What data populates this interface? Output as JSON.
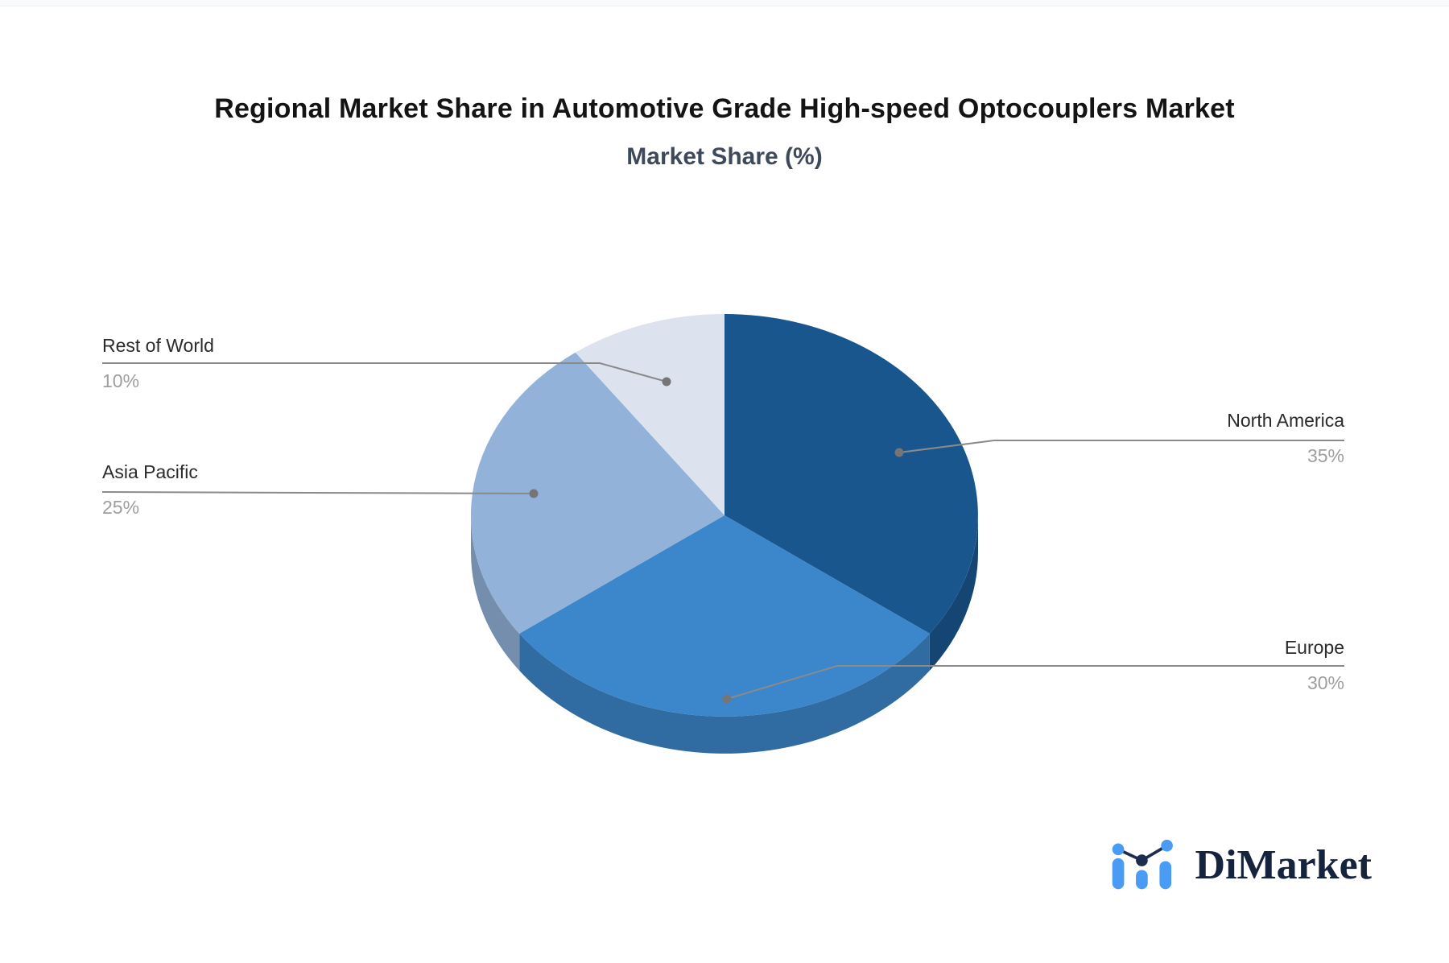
{
  "header": {
    "title": "Regional Market Share in Automotive Grade High-speed Optocouplers Market",
    "subtitle": "Market Share (%)"
  },
  "chart_data": {
    "type": "pie",
    "title": "Regional Market Share in Automotive Grade High-speed Optocouplers Market",
    "subtitle": "Market Share (%)",
    "unit": "%",
    "style": "3d-extruded-pie",
    "start_angle": "12-o-clock",
    "direction": "clockwise",
    "legend_position": "callout-labels",
    "slices": [
      {
        "label": "North America",
        "value": 35,
        "display": "35%",
        "color": "#1A568E"
      },
      {
        "label": "Europe",
        "value": 30,
        "display": "30%",
        "color": "#3C86CB"
      },
      {
        "label": "Asia Pacific",
        "value": 25,
        "display": "25%",
        "color": "#92B2D9"
      },
      {
        "label": "Rest of World",
        "value": 10,
        "display": "10%",
        "color": "#DCE3EE"
      }
    ],
    "leader_line_color": "#8A8A8A",
    "leader_dot_color": "#757575",
    "label_text_color": "#2B2B2B",
    "percent_text_color": "#9E9E9E"
  },
  "branding": {
    "logo_text": "DiMarket",
    "logo_text_color": "#16233C",
    "logo_bar_color": "#4A9BF3",
    "logo_dot_dark_color": "#1D2D50"
  }
}
